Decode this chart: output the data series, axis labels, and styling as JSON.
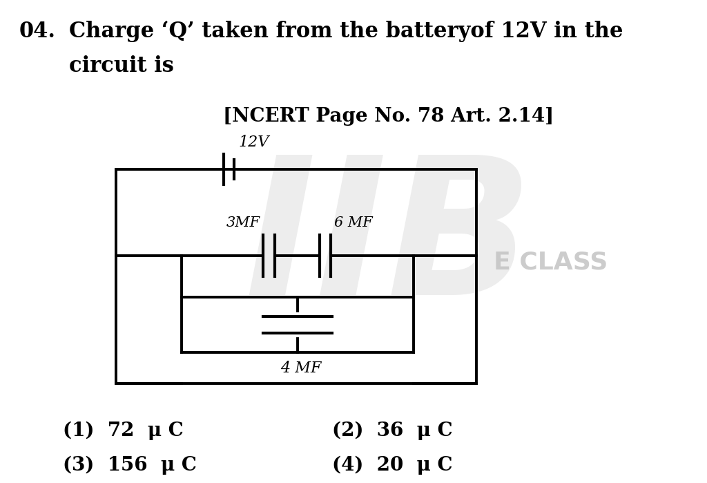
{
  "bg_color": "#ffffff",
  "question_number": "04.",
  "question_text_line1": "Charge ‘Q’ taken from the batteryof 12V in the",
  "question_text_line2": "circuit is",
  "reference_text": "[NCERT Page No. 78 Art. 2.14]",
  "watermark_text": "IIB",
  "eclass_text": "E CLASS",
  "options": [
    "(1)  72  μ C",
    "(2)  36  μ C",
    "(3)  156  μ C",
    "(4)  20  μ C"
  ],
  "label_3mf": "3MF",
  "label_6mf": "6 MF",
  "label_4mf": "4 MF",
  "label_12v": "12V"
}
